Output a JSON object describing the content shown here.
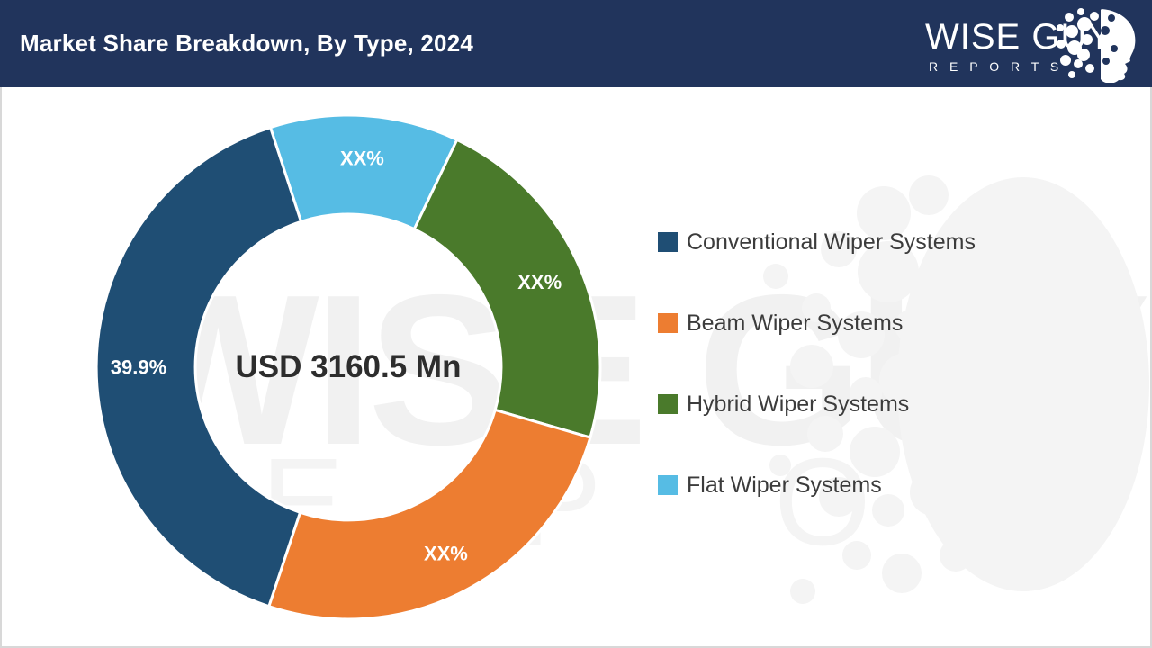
{
  "header": {
    "title": "Market Share Breakdown, By Type, 2024",
    "logo": {
      "line1": "WISE GUY",
      "line2": "R E P O R T S"
    }
  },
  "watermark": {
    "line1": "WISE GUY",
    "line2": "REPORTS"
  },
  "chart_data": {
    "type": "pie",
    "subtype": "donut",
    "title": "Market Share Breakdown, By Type, 2024",
    "center_label": "USD 3160.5 Mn",
    "legend_position": "right",
    "start_angle_deg_cw_from_top": -18,
    "slices": [
      {
        "name": "Flat Wiper Systems",
        "label": "XX%",
        "value_pct_est": 12.1,
        "color": "#56BCE4"
      },
      {
        "name": "Hybrid Wiper Systems",
        "label": "XX%",
        "value_pct_est": 22.4,
        "color": "#4A7A2B"
      },
      {
        "name": "Beam Wiper Systems",
        "label": "XX%",
        "value_pct_est": 25.6,
        "color": "#ED7D31"
      },
      {
        "name": "Conventional Wiper Systems",
        "label": "39.9%",
        "value_pct_est": 39.9,
        "color": "#1F4E74"
      }
    ],
    "legend": [
      {
        "label": "Conventional Wiper Systems",
        "color": "#1F4E74"
      },
      {
        "label": "Beam Wiper Systems",
        "color": "#ED7D31"
      },
      {
        "label": "Hybrid Wiper Systems",
        "color": "#4A7A2B"
      },
      {
        "label": "Flat Wiper Systems",
        "color": "#56BCE4"
      }
    ]
  },
  "colors": {
    "header_bg": "#21345C",
    "content_border": "#D8D8D8",
    "slice_label_text": "#FFFFFF",
    "center_text": "#2D2D2D",
    "legend_text": "#3C3C3C",
    "watermark": "#F1F1F1"
  }
}
